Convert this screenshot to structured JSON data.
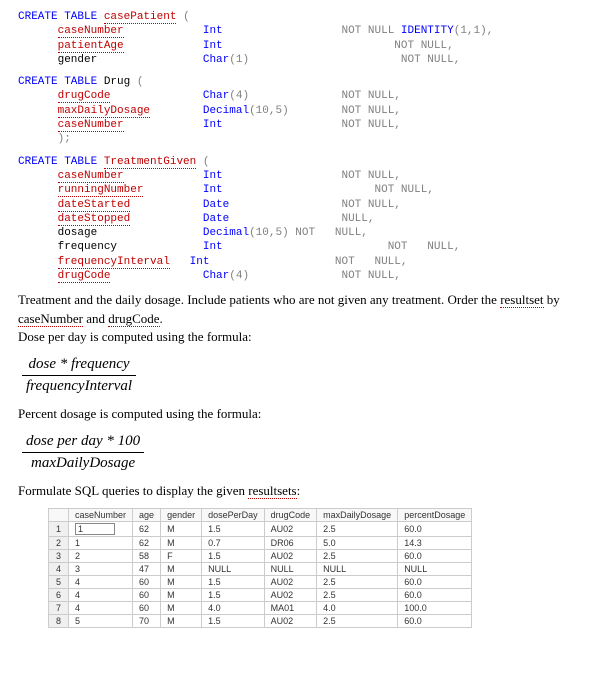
{
  "sql": {
    "table1": {
      "create": "CREATE TABLE",
      "name": "casePatient",
      "cols": [
        {
          "name": "caseNumber",
          "type": "Int",
          "constraint": "NOT NULL",
          "extra": "IDENTITY",
          "extraArgs": "(1,1),"
        },
        {
          "name": "patientAge",
          "type": "Int",
          "constraint": "NOT NULL,"
        },
        {
          "name": "gender",
          "type": "Char",
          "args": "(1)",
          "constraint": "NOT NULL,"
        }
      ]
    },
    "table2": {
      "create": "CREATE TABLE",
      "name": "Drug",
      "cols": [
        {
          "name": "drugCode",
          "type": "Char",
          "args": "(4)",
          "constraint": "NOT NULL,"
        },
        {
          "name": "maxDailyDosage",
          "type": "Decimal",
          "args": "(10,5)",
          "constraint": "NOT NULL,"
        },
        {
          "name": "caseNumber",
          "type": "Int",
          "constraint": "NOT NULL,"
        }
      ],
      "close": ");"
    },
    "table3": {
      "create": "CREATE TABLE",
      "name": "TreatmentGiven",
      "cols": [
        {
          "name": "caseNumber",
          "type": "Int",
          "constraint": "NOT NULL,"
        },
        {
          "name": "runningNumber",
          "type": "Int",
          "constraint": "NOT NULL,"
        },
        {
          "name": "dateStarted",
          "type": "Date",
          "constraint": "NOT NULL,"
        },
        {
          "name": "dateStopped",
          "type": "Date",
          "constraint": "NULL,"
        },
        {
          "name": "dosage",
          "type": "Decimal",
          "args": "(10,5)",
          "constraint": "NOT   NULL,"
        },
        {
          "name": "frequency",
          "type": "Int",
          "constraint": "NOT   NULL,"
        },
        {
          "name": "frequencyInterval",
          "type": "Int",
          "constraint": "NOT   NULL,"
        },
        {
          "name": "drugCode",
          "type": "Char",
          "args": "(4)",
          "constraint": "NOT NULL,"
        }
      ]
    }
  },
  "paragraph1_a": "Treatment and the daily dosage. Include patients who are not given any treatment. Order the ",
  "paragraph1_b": "resultset",
  "paragraph1_c": " by ",
  "paragraph1_d": "caseNumber",
  "paragraph1_e": " and ",
  "paragraph1_f": "drugCode",
  "paragraph1_g": ".",
  "paragraph2": "Dose per day is computed using the formula:",
  "formula1": {
    "num": "dose * frequency",
    "den": "frequencyInterval"
  },
  "paragraph3": "Percent dosage is computed using the formula:",
  "formula2": {
    "num": "dose per day * 100",
    "den": "maxDailyDosage"
  },
  "paragraph4_a": "Formulate SQL queries to display the given ",
  "paragraph4_b": "resultsets",
  "paragraph4_c": ":",
  "table": {
    "headers": [
      "",
      "caseNumber",
      "age",
      "gender",
      "dosePerDay",
      "drugCode",
      "maxDailyDosage",
      "percentDosage"
    ],
    "rows": [
      [
        "1",
        "1",
        "62",
        "M",
        "1.5",
        "AU02",
        "2.5",
        "60.0"
      ],
      [
        "2",
        "1",
        "62",
        "M",
        "0.7",
        "DR06",
        "5.0",
        "14.3"
      ],
      [
        "3",
        "2",
        "58",
        "F",
        "1.5",
        "AU02",
        "2.5",
        "60.0"
      ],
      [
        "4",
        "3",
        "47",
        "M",
        "NULL",
        "NULL",
        "NULL",
        "NULL"
      ],
      [
        "5",
        "4",
        "60",
        "M",
        "1.5",
        "AU02",
        "2.5",
        "60.0"
      ],
      [
        "6",
        "4",
        "60",
        "M",
        "1.5",
        "AU02",
        "2.5",
        "60.0"
      ],
      [
        "7",
        "4",
        "60",
        "M",
        "4.0",
        "MA01",
        "4.0",
        "100.0"
      ],
      [
        "8",
        "5",
        "70",
        "M",
        "1.5",
        "AU02",
        "2.5",
        "60.0"
      ]
    ]
  }
}
